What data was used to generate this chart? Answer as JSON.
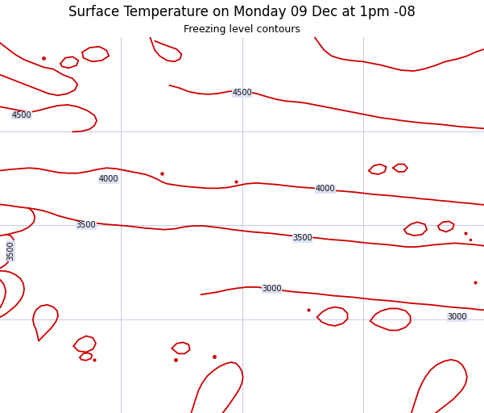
{
  "title": "Surface Temperature on Monday 09 Dec at 1pm -08",
  "subtitle": "Freezing level contours",
  "title_fontsize": 12,
  "subtitle_fontsize": 9,
  "bg_color": "#e8eaf6",
  "map_bg_color": "#dde2f3",
  "contour_color": "#cc0000",
  "label_color": "#111111",
  "grid_color": "#c5cae9",
  "contour_linewidth": 1.3,
  "label_fontsize": 7,
  "figsize": [
    6.01,
    5.12
  ],
  "dpi": 100,
  "title_area_color": "#ffffff",
  "border_color": "#aaaaaa"
}
